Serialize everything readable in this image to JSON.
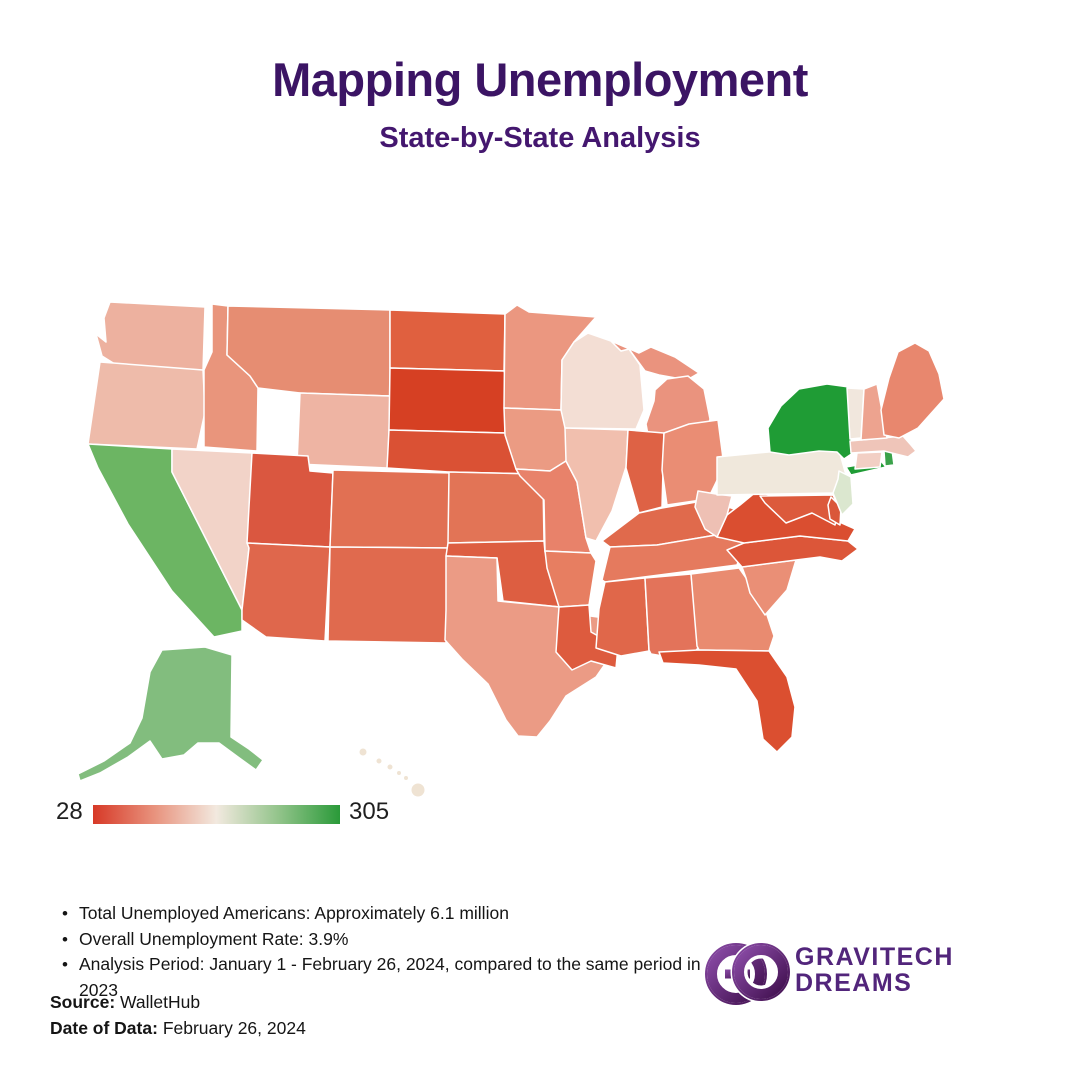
{
  "title": "Mapping Unemployment",
  "subtitle": "State-by-State Analysis",
  "legend": {
    "min_label": "28",
    "max_label": "305",
    "gradient": [
      "#d73927",
      "#e8937e",
      "#f2e9df",
      "#93c48b",
      "#2a9a39"
    ]
  },
  "notes": {
    "bullets": [
      "Total Unemployed Americans: Approximately 6.1 million",
      "Overall Unemployment Rate: 3.9%",
      "Analysis Period: January 1 - February 26, 2024, compared to the same period in 2023"
    ],
    "source_label": "Source:",
    "source_value": "WalletHub",
    "date_label": "Date of Data:",
    "date_value": "February 26, 2024"
  },
  "logo": {
    "line1": "GRAVITECH",
    "line2": "DREAMS",
    "text_color": "#52257b",
    "mark_gradient": [
      "#8a4ba6",
      "#41104f"
    ]
  },
  "chart_data": {
    "type": "heatmap",
    "subtype": "us-state-choropleth",
    "title": "Mapping Unemployment — State-by-State Analysis",
    "scale": {
      "min": 28,
      "max": 305,
      "low_color": "#d73927",
      "mid_color": "#f2e9df",
      "high_color": "#2a9a39"
    },
    "legend_position": "bottom-left",
    "states": [
      {
        "abbr": "WA",
        "name": "Washington",
        "value_estimate": 103,
        "color": "#edb19f"
      },
      {
        "abbr": "OR",
        "name": "Oregon",
        "value_estimate": 115,
        "color": "#eebbaa"
      },
      {
        "abbr": "CA",
        "name": "California",
        "value_estimate": 250,
        "color": "#6cb563"
      },
      {
        "abbr": "NV",
        "name": "Nevada",
        "value_estimate": 135,
        "color": "#f2d3c8"
      },
      {
        "abbr": "ID",
        "name": "Idaho",
        "value_estimate": 93,
        "color": "#e9957c"
      },
      {
        "abbr": "MT",
        "name": "Montana",
        "value_estimate": 88,
        "color": "#e68d72"
      },
      {
        "abbr": "WY",
        "name": "Wyoming",
        "value_estimate": 112,
        "color": "#eeb4a3"
      },
      {
        "abbr": "UT",
        "name": "Utah",
        "value_estimate": 50,
        "color": "#da5740"
      },
      {
        "abbr": "CO",
        "name": "Colorado",
        "value_estimate": 75,
        "color": "#e17053"
      },
      {
        "abbr": "AZ",
        "name": "Arizona",
        "value_estimate": 72,
        "color": "#df674c"
      },
      {
        "abbr": "NM",
        "name": "New Mexico",
        "value_estimate": 72,
        "color": "#e06a4e"
      },
      {
        "abbr": "ND",
        "name": "North Dakota",
        "value_estimate": 70,
        "color": "#e0603f"
      },
      {
        "abbr": "SD",
        "name": "South Dakota",
        "value_estimate": 28,
        "color": "#d64023"
      },
      {
        "abbr": "NE",
        "name": "Nebraska",
        "value_estimate": 45,
        "color": "#da5134"
      },
      {
        "abbr": "KS",
        "name": "Kansas",
        "value_estimate": 75,
        "color": "#e27456"
      },
      {
        "abbr": "OK",
        "name": "Oklahoma",
        "value_estimate": 62,
        "color": "#dd5e41"
      },
      {
        "abbr": "TX",
        "name": "Texas",
        "value_estimate": 98,
        "color": "#eb9b85"
      },
      {
        "abbr": "MN",
        "name": "Minnesota",
        "value_estimate": 96,
        "color": "#eb9780"
      },
      {
        "abbr": "IA",
        "name": "Iowa",
        "value_estimate": 98,
        "color": "#eb9b83"
      },
      {
        "abbr": "MO",
        "name": "Missouri",
        "value_estimate": 85,
        "color": "#e8826a"
      },
      {
        "abbr": "AR",
        "name": "Arkansas",
        "value_estimate": 82,
        "color": "#e77e61"
      },
      {
        "abbr": "LA",
        "name": "Louisiana",
        "value_estimate": 58,
        "color": "#dd5b3e"
      },
      {
        "abbr": "WI",
        "name": "Wisconsin",
        "value_estimate": 150,
        "color": "#f3ded4"
      },
      {
        "abbr": "IL",
        "name": "Illinois",
        "value_estimate": 120,
        "color": "#f1bfae"
      },
      {
        "abbr": "MI",
        "name": "Michigan",
        "value_estimate": 97,
        "color": "#ea937e"
      },
      {
        "abbr": "IN",
        "name": "Indiana",
        "value_estimate": 62,
        "color": "#de6245"
      },
      {
        "abbr": "OH",
        "name": "Ohio",
        "value_estimate": 97,
        "color": "#ea8d74"
      },
      {
        "abbr": "KY",
        "name": "Kentucky",
        "value_estimate": 72,
        "color": "#e06a4c"
      },
      {
        "abbr": "TN",
        "name": "Tennessee",
        "value_estimate": 80,
        "color": "#e57a5e"
      },
      {
        "abbr": "MS",
        "name": "Mississippi",
        "value_estimate": 70,
        "color": "#e0674a"
      },
      {
        "abbr": "AL",
        "name": "Alabama",
        "value_estimate": 75,
        "color": "#e3735a"
      },
      {
        "abbr": "GA",
        "name": "Georgia",
        "value_estimate": 90,
        "color": "#e98b70"
      },
      {
        "abbr": "FL",
        "name": "Florida",
        "value_estimate": 52,
        "color": "#db4f30"
      },
      {
        "abbr": "SC",
        "name": "South Carolina",
        "value_estimate": 92,
        "color": "#ea8f76"
      },
      {
        "abbr": "NC",
        "name": "North Carolina",
        "value_estimate": 55,
        "color": "#dc5639"
      },
      {
        "abbr": "VA",
        "name": "Virginia",
        "value_estimate": 48,
        "color": "#da4e30"
      },
      {
        "abbr": "WV",
        "name": "West Virginia",
        "value_estimate": 122,
        "color": "#eec0b4"
      },
      {
        "abbr": "MD",
        "name": "Maryland",
        "value_estimate": 60,
        "color": "#dc5a3c"
      },
      {
        "abbr": "DE",
        "name": "Delaware",
        "value_estimate": 60,
        "color": "#da573a"
      },
      {
        "abbr": "PA",
        "name": "Pennsylvania",
        "value_estimate": 160,
        "color": "#f0e8dc"
      },
      {
        "abbr": "NJ",
        "name": "New Jersey",
        "value_estimate": 185,
        "color": "#dbe7cf"
      },
      {
        "abbr": "NY",
        "name": "New York",
        "value_estimate": 305,
        "color": "#1f9c35"
      },
      {
        "abbr": "CT",
        "name": "Connecticut",
        "value_estimate": 128,
        "color": "#f2cfc4"
      },
      {
        "abbr": "RI",
        "name": "Rhode Island",
        "value_estimate": 290,
        "color": "#3aa24a"
      },
      {
        "abbr": "MA",
        "name": "Massachusetts",
        "value_estimate": 125,
        "color": "#efc5b9"
      },
      {
        "abbr": "VT",
        "name": "Vermont",
        "value_estimate": 158,
        "color": "#f1e7dd"
      },
      {
        "abbr": "NH",
        "name": "New Hampshire",
        "value_estimate": 105,
        "color": "#eda38f"
      },
      {
        "abbr": "ME",
        "name": "Maine",
        "value_estimate": 92,
        "color": "#e8876e"
      },
      {
        "abbr": "AK",
        "name": "Alaska",
        "value_estimate": 240,
        "color": "#82bd7e"
      },
      {
        "abbr": "HI",
        "name": "Hawaii",
        "value_estimate": 162,
        "color": "#efe3d3"
      }
    ]
  }
}
